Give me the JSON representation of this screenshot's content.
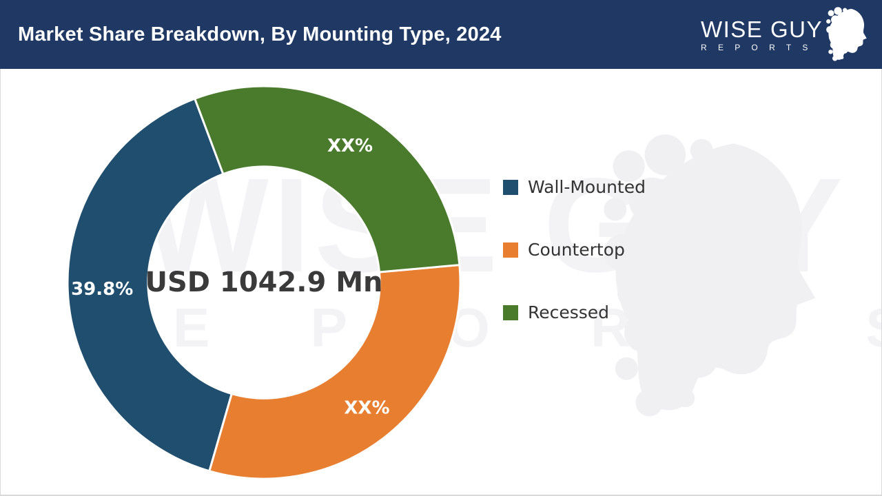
{
  "header": {
    "title": "Market Share Breakdown, By Mounting Type, 2024",
    "logo_line1": "WISE GUY",
    "logo_line2": "R E P O R T S"
  },
  "watermark": {
    "line1": "WISE GUY",
    "line2": "E P O R T S"
  },
  "chart_data": {
    "type": "pie",
    "variant": "donut",
    "title": "Market Share Breakdown, By Mounting Type, 2024",
    "categories": [
      "Wall-Mounted",
      "Countertop",
      "Recessed"
    ],
    "values": [
      39.8,
      30.9,
      29.3
    ],
    "displayed_labels": [
      "39.8%",
      "XX%",
      "XX%"
    ],
    "colors": [
      "#1F4E6E",
      "#E87E2F",
      "#4A7A2C"
    ],
    "center_label": "USD 1042.9 Mn",
    "start_angle_deg": 110.6,
    "direction": "counterclockwise",
    "hole_ratio": 0.59,
    "legend_position": "right",
    "slice_label_color": "#ffffff"
  },
  "legend": {
    "items": [
      {
        "label": "Wall-Mounted",
        "color": "#1F4E6E"
      },
      {
        "label": "Countertop",
        "color": "#E87E2F"
      },
      {
        "label": "Recessed",
        "color": "#4A7A2C"
      }
    ]
  },
  "colors": {
    "header_bg": "#1F3864",
    "content_bg": "#FFFFFF",
    "center_text": "#3A3A3A",
    "legend_text": "#333333",
    "watermark": "#F3F3F5",
    "watermark_face": "#F0F0F2",
    "border": "#D9D9D9"
  }
}
